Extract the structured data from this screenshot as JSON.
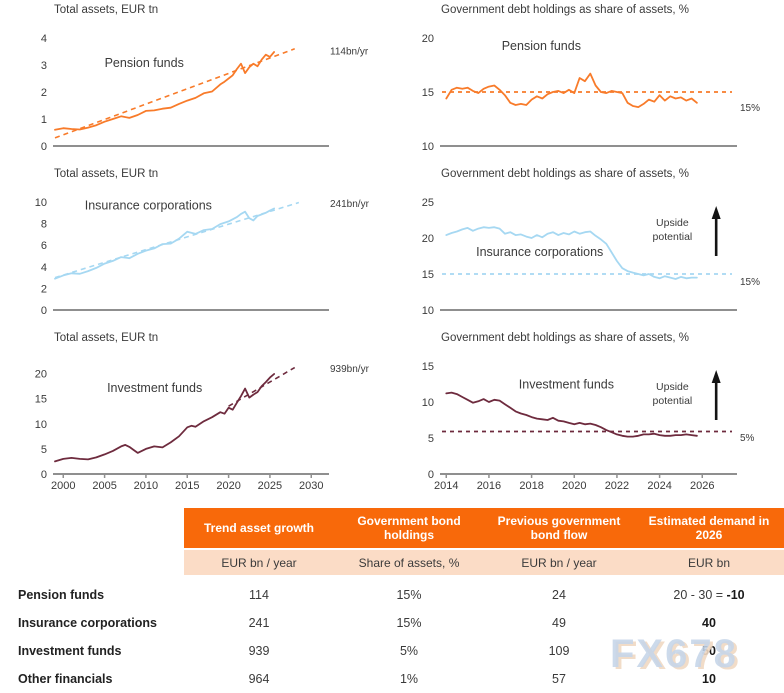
{
  "colors": {
    "pension": "#F87B2A",
    "insurance_line": "#A6D8F2",
    "insurance_text": "#7FB9DB",
    "investment": "#6E2B3E",
    "header_orange": "#F8690A",
    "units_peach": "#FBDCC6",
    "axis_text": "#3B3B3B",
    "baseline_gray": "#8F8F8F",
    "arrow_black": "#141414"
  },
  "upside_label": {
    "line1": "Upside",
    "line2": "potential"
  },
  "watermark": {
    "text": "FX678"
  },
  "chart_data": [
    {
      "type": "line",
      "side": "left",
      "title": "Total assets, EUR tn",
      "series_label": "Pension funds",
      "color": "#F87B2A",
      "label_color": "#F87B2A",
      "ylim": [
        0,
        4
      ],
      "yticks": [
        0,
        1,
        2,
        3,
        4
      ],
      "xlim": [
        1999,
        2031.3
      ],
      "xticks": [],
      "x": [
        1999,
        2000,
        2001,
        2002,
        2003,
        2004,
        2005,
        2006,
        2007,
        2008,
        2009,
        2010,
        2011,
        2012,
        2013,
        2014,
        2015,
        2016,
        2017,
        2018,
        2019,
        2019.5,
        2020,
        2020.5,
        2021,
        2021.5,
        2022,
        2022.5,
        2023,
        2023.5,
        2024,
        2024.5,
        2025,
        2025.5
      ],
      "y": [
        0.6,
        0.66,
        0.63,
        0.61,
        0.68,
        0.77,
        0.9,
        1.0,
        1.1,
        1.04,
        1.15,
        1.3,
        1.32,
        1.38,
        1.42,
        1.56,
        1.68,
        1.78,
        1.95,
        2.02,
        2.28,
        2.38,
        2.5,
        2.62,
        2.85,
        3.05,
        2.7,
        2.92,
        3.05,
        2.95,
        3.2,
        3.38,
        3.3,
        3.48
      ],
      "trend": {
        "x": [
          1999,
          2028
        ],
        "y": [
          0.3,
          3.6
        ]
      },
      "annotation": "114bn/yr",
      "annotation_value": 3.5,
      "label_pos": [
        2005.0,
        2.92
      ],
      "upside": false
    },
    {
      "type": "line",
      "side": "right",
      "title": "Government debt holdings as share of assets, %",
      "series_label": "Pension funds",
      "color": "#F87B2A",
      "label_color": "#F87B2A",
      "ylim": [
        10,
        20
      ],
      "yticks": [
        10,
        15,
        20
      ],
      "xlim": [
        2013.8,
        2027.3
      ],
      "xticks": [],
      "x_start": 2014,
      "x_step": 0.25,
      "y": [
        14.4,
        15.2,
        15.4,
        15.3,
        15.4,
        15.1,
        14.9,
        15.3,
        15.5,
        15.6,
        15.2,
        14.7,
        14.0,
        13.8,
        13.9,
        13.8,
        14.3,
        14.6,
        14.4,
        14.8,
        15.0,
        15.1,
        14.9,
        15.2,
        14.9,
        16.3,
        16.0,
        16.7,
        15.6,
        15.0,
        14.9,
        15.1,
        15.0,
        14.9,
        14.0,
        13.7,
        13.6,
        13.9,
        14.3,
        14.1,
        14.7,
        14.2,
        14.6,
        14.4,
        14.5,
        14.2,
        14.4,
        14.0
      ],
      "hline": 15,
      "annotation": "15%",
      "annotation_value": 13.5,
      "label_pos": [
        2016.6,
        18.9
      ],
      "upside": false
    },
    {
      "type": "line",
      "side": "left",
      "title": "Total assets, EUR tn",
      "series_label": "Insurance corporations",
      "color": "#A6D8F2",
      "label_color": "#7FB9DB",
      "ylim": [
        0,
        10
      ],
      "yticks": [
        0,
        2,
        4,
        6,
        8,
        10
      ],
      "xlim": [
        1999,
        2031.3
      ],
      "xticks": [],
      "x": [
        1999,
        2000,
        2001,
        2002,
        2003,
        2004,
        2005,
        2006,
        2007,
        2008,
        2009,
        2010,
        2011,
        2012,
        2013,
        2014,
        2015,
        2016,
        2017,
        2018,
        2019,
        2020,
        2021,
        2021.5,
        2022,
        2022.5,
        2023,
        2023.5,
        2024,
        2024.5,
        2025,
        2025.5
      ],
      "y": [
        2.9,
        3.2,
        3.4,
        3.35,
        3.6,
        3.9,
        4.3,
        4.55,
        4.9,
        4.8,
        5.2,
        5.5,
        5.7,
        6.1,
        6.15,
        6.6,
        7.25,
        7.05,
        7.4,
        7.5,
        7.95,
        8.2,
        8.6,
        8.9,
        9.1,
        8.5,
        8.3,
        8.7,
        8.85,
        9.0,
        9.2,
        9.4
      ],
      "trend": {
        "x": [
          1999,
          2028.5
        ],
        "y": [
          3.0,
          9.95
        ]
      },
      "annotation": "241bn/yr",
      "annotation_value": 9.8,
      "label_pos": [
        2002.6,
        9.3
      ],
      "upside": false
    },
    {
      "type": "line",
      "side": "right",
      "title": "Government debt holdings as share of assets, %",
      "series_label": "Insurance corporations",
      "color": "#A6D8F2",
      "label_color": "#7FB9DB",
      "ylim": [
        10,
        25
      ],
      "yticks": [
        10,
        15,
        20,
        25
      ],
      "xlim": [
        2013.8,
        2027.3
      ],
      "xticks": [],
      "x_start": 2014,
      "x_step": 0.25,
      "y": [
        20.4,
        20.7,
        20.9,
        21.2,
        21.4,
        21.0,
        21.3,
        21.5,
        21.4,
        21.5,
        21.3,
        20.6,
        20.8,
        20.4,
        20.5,
        20.2,
        20.0,
        20.4,
        20.1,
        20.6,
        20.8,
        20.4,
        20.7,
        20.5,
        20.9,
        20.6,
        20.8,
        20.9,
        20.3,
        19.8,
        19.2,
        18.0,
        16.8,
        15.8,
        15.4,
        15.2,
        15.0,
        14.8,
        15.0,
        14.6,
        14.4,
        14.7,
        14.5,
        14.3,
        14.6,
        14.4,
        14.5,
        14.5
      ],
      "hline": 15,
      "annotation": "15%",
      "annotation_value": 13.9,
      "label_pos": [
        2015.4,
        17.5
      ],
      "upside": true
    },
    {
      "type": "line",
      "side": "left",
      "title": "Total assets, EUR tn",
      "series_label": "Investment funds",
      "color": "#6E2B3E",
      "label_color": "#6E2B3E",
      "ylim": [
        0,
        21.5
      ],
      "yticks": [
        0,
        5,
        10,
        15,
        20
      ],
      "xlim": [
        1999,
        2031.3
      ],
      "xticks": [
        2000,
        2005,
        2010,
        2015,
        2020,
        2025,
        2030
      ],
      "x": [
        1999,
        2000,
        2001,
        2002,
        2003,
        2004,
        2005,
        2006,
        2007,
        2007.5,
        2008,
        2008.5,
        2009,
        2010,
        2011,
        2012,
        2013,
        2014,
        2015,
        2015.5,
        2016,
        2017,
        2018,
        2019,
        2019.5,
        2020,
        2020.5,
        2021,
        2021.5,
        2022,
        2022.5,
        2023,
        2023.5,
        2024,
        2024.5,
        2025,
        2025.5
      ],
      "y": [
        2.5,
        3.0,
        3.2,
        3.0,
        2.9,
        3.3,
        3.9,
        4.6,
        5.5,
        5.8,
        5.4,
        4.8,
        4.2,
        5.0,
        5.5,
        5.3,
        6.3,
        7.5,
        9.3,
        9.6,
        9.4,
        10.5,
        11.3,
        12.3,
        12.0,
        13.2,
        12.8,
        14.2,
        15.5,
        17.0,
        15.2,
        15.8,
        16.3,
        17.5,
        18.3,
        19.2,
        19.9
      ],
      "trend": {
        "x": [
          2020,
          2028
        ],
        "y": [
          13.5,
          21.2
        ]
      },
      "annotation": "939bn/yr",
      "annotation_value": 20.9,
      "label_pos": [
        2005.3,
        16.3
      ],
      "upside": false
    },
    {
      "type": "line",
      "side": "right",
      "title": "Government debt holdings as share of assets, %",
      "series_label": "Investment funds",
      "color": "#6E2B3E",
      "label_color": "#6E2B3E",
      "ylim": [
        0,
        15
      ],
      "yticks": [
        0,
        5,
        10,
        15
      ],
      "xlim": [
        2013.8,
        2027.3
      ],
      "xticks": [
        2014,
        2016,
        2018,
        2020,
        2022,
        2024,
        2026
      ],
      "x_start": 2014,
      "x_step": 0.25,
      "y": [
        11.2,
        11.3,
        11.1,
        10.7,
        10.3,
        9.9,
        10.1,
        10.4,
        10.0,
        10.3,
        10.2,
        9.7,
        9.2,
        8.7,
        8.4,
        8.2,
        7.9,
        7.7,
        7.6,
        7.5,
        7.8,
        7.4,
        7.3,
        7.1,
        6.9,
        7.1,
        6.9,
        7.0,
        6.8,
        6.5,
        6.1,
        5.8,
        5.5,
        5.3,
        5.2,
        5.2,
        5.3,
        5.5,
        5.5,
        5.6,
        5.4,
        5.3,
        5.3,
        5.4,
        5.4,
        5.5,
        5.4,
        5.3
      ],
      "hline": 5.9,
      "annotation": "5%",
      "annotation_value": 5.0,
      "label_pos": [
        2017.4,
        11.9
      ],
      "upside": true
    }
  ],
  "table": {
    "columns": [
      "Trend asset growth",
      "Government bond holdings",
      "Previous government bond flow",
      "Estimated demand in 2026"
    ],
    "units": [
      "EUR bn / year",
      "Share of assets, %",
      "EUR bn / year",
      "EUR bn"
    ],
    "rows": [
      {
        "label": "Pension funds",
        "trend": "114",
        "holdings": "15%",
        "flow": "24",
        "demand_prefix": "20 - 30 = ",
        "demand": "-10"
      },
      {
        "label": "Insurance corporations",
        "trend": "241",
        "holdings": "15%",
        "flow": "49",
        "demand_prefix": "",
        "demand": "40"
      },
      {
        "label": "Investment funds",
        "trend": "939",
        "holdings": "5%",
        "flow": "109",
        "demand_prefix": "",
        "demand": "50"
      },
      {
        "label": "Other financials",
        "trend": "964",
        "holdings": "1%",
        "flow": "57",
        "demand_prefix": "",
        "demand": "10"
      }
    ]
  }
}
